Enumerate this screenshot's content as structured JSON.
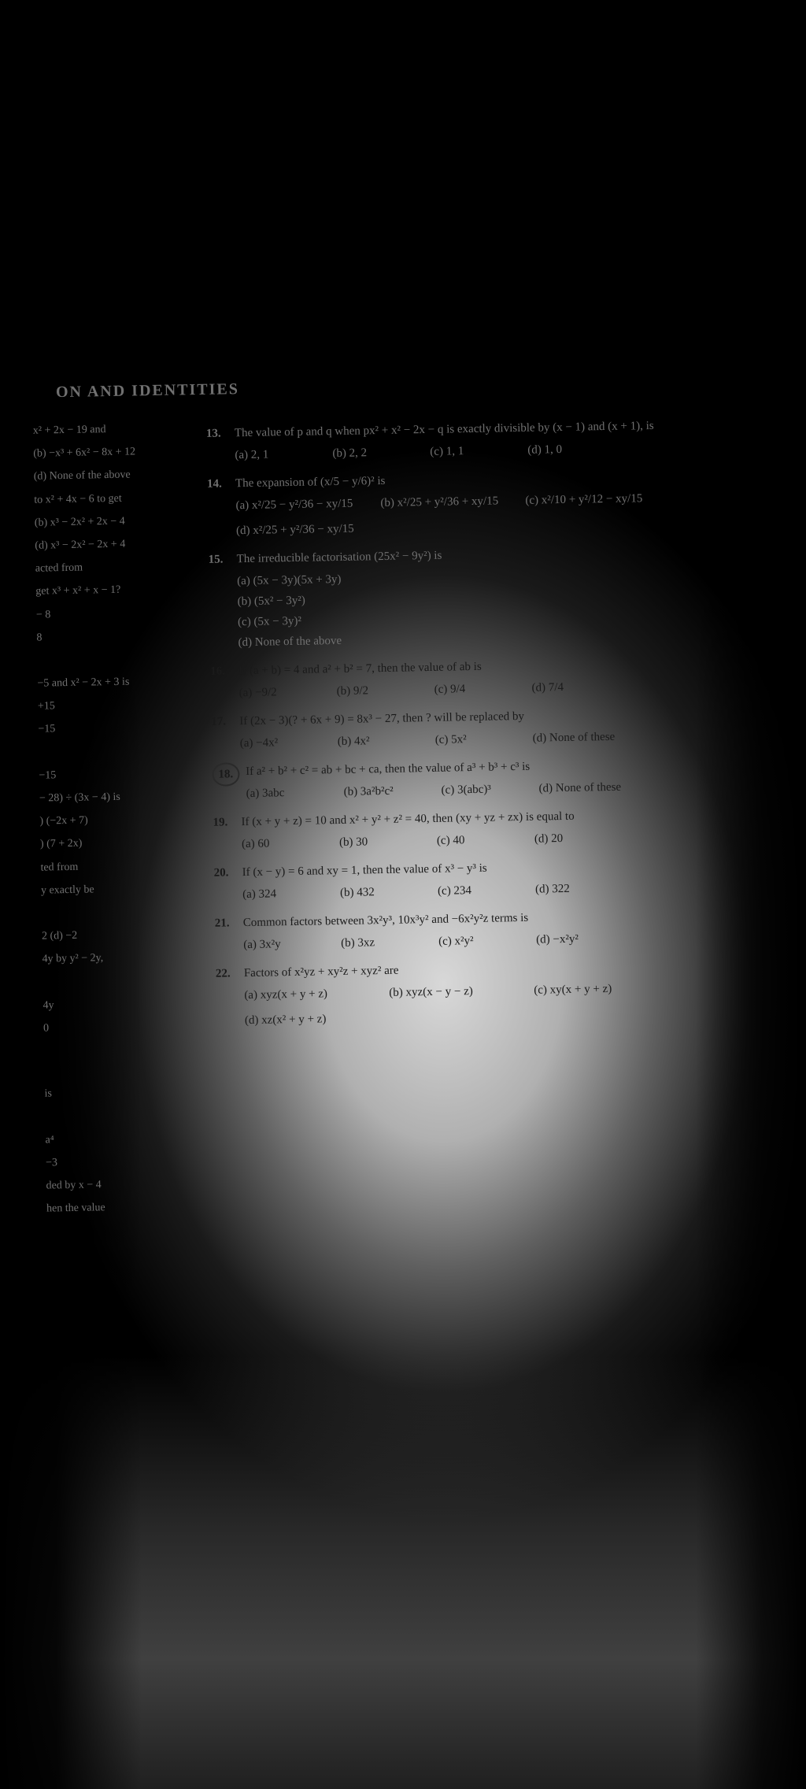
{
  "header": "ON AND IDENTITIES",
  "left_fragments": {
    "l1": "x² + 2x − 19 and",
    "l2": "(b) −x³ + 6x² − 8x + 12",
    "l3": "(d) None of the above",
    "l4": "to x² + 4x − 6 to get",
    "l5": "(b) x³ − 2x² + 2x − 4",
    "l6": "(d) x³ − 2x² − 2x + 4",
    "l7": "acted from",
    "l8": "get x³ + x² + x − 1?",
    "l9": "− 8",
    "l10": "8",
    "l11": "−5 and x² − 2x + 3 is",
    "l12": "+15",
    "l13": "−15",
    "l14": "−15",
    "l15": "− 28) ÷ (3x − 4) is",
    "l16": ") (−2x + 7)",
    "l17": ") (7 + 2x)",
    "l18": "ted from",
    "l19": "y exactly be",
    "l20": "2          (d) −2",
    "l21": "4y by y² − 2y,",
    "l22": "4y",
    "l23": "0",
    "l24": "is",
    "l25": "a⁴",
    "l26": "−3",
    "l27": "ded by x − 4",
    "l28": "hen the value"
  },
  "questions": {
    "q13": {
      "num": "13.",
      "text": "The value of p and q when px² + x² − 2x − q is exactly divisible by (x − 1) and (x + 1), is",
      "opts": {
        "a": "(a) 2, 1",
        "b": "(b) 2, 2",
        "c": "(c) 1, 1",
        "d": "(d) 1, 0"
      }
    },
    "q14": {
      "num": "14.",
      "text": "The expansion of (x/5 − y/6)² is",
      "opts": {
        "a": "(a) x²/25 − y²/36 − xy/15",
        "b": "(b) x²/25 + y²/36 + xy/15",
        "c": "(c) x²/10 + y²/12 − xy/15",
        "d": "(d) x²/25 + y²/36 − xy/15"
      }
    },
    "q15": {
      "num": "15.",
      "text": "The irreducible factorisation (25x² − 9y²) is",
      "opts": {
        "a": "(a) (5x − 3y)(5x + 3y)",
        "b": "(b) (5x² − 3y²)",
        "c": "(c) (5x − 3y)²",
        "d": "(d) None of the above"
      }
    },
    "q16": {
      "num": "16.",
      "text": "If (a + b) = 4 and a² + b² = 7, then the value of ab is",
      "opts": {
        "a": "(a) −9/2",
        "b": "(b) 9/2",
        "c": "(c) 9/4",
        "d": "(d) 7/4"
      }
    },
    "q17": {
      "num": "17.",
      "text": "If (2x − 3)(? + 6x + 9) = 8x³ − 27, then ? will be replaced by",
      "opts": {
        "a": "(a) −4x²",
        "b": "(b) 4x²",
        "c": "(c) 5x²",
        "d": "(d) None of these"
      }
    },
    "q18": {
      "num": "18.",
      "text": "If a² + b² + c² = ab + bc + ca, then the value of a³ + b³ + c³ is",
      "opts": {
        "a": "(a) 3abc",
        "b": "(b) 3a²b²c²",
        "c": "(c) 3(abc)³",
        "d": "(d) None of these"
      }
    },
    "q19": {
      "num": "19.",
      "text": "If (x + y + z) = 10 and x² + y² + z² = 40, then (xy + yz + zx) is equal to",
      "opts": {
        "a": "(a) 60",
        "b": "(b) 30",
        "c": "(c) 40",
        "d": "(d) 20"
      }
    },
    "q20": {
      "num": "20.",
      "text": "If (x − y) = 6 and xy = 1, then the value of x³ − y³ is",
      "opts": {
        "a": "(a) 324",
        "b": "(b) 432",
        "c": "(c) 234",
        "d": "(d) 322"
      }
    },
    "q21": {
      "num": "21.",
      "text": "Common factors between 3x²y³, 10x³y² and −6x²y²z terms is",
      "opts": {
        "a": "(a) 3x²y",
        "b": "(b) 3xz",
        "c": "(c) x²y²",
        "d": "(d) −x²y²"
      }
    },
    "q22": {
      "num": "22.",
      "text": "Factors of x²yz + xy²z + xyz² are",
      "opts": {
        "a": "(a) xyz(x + y + z)",
        "b": "(b) xyz(x − y − z)",
        "c": "(c) xy(x + y + z)",
        "d": "(d) xz(x² + y + z)"
      }
    }
  }
}
